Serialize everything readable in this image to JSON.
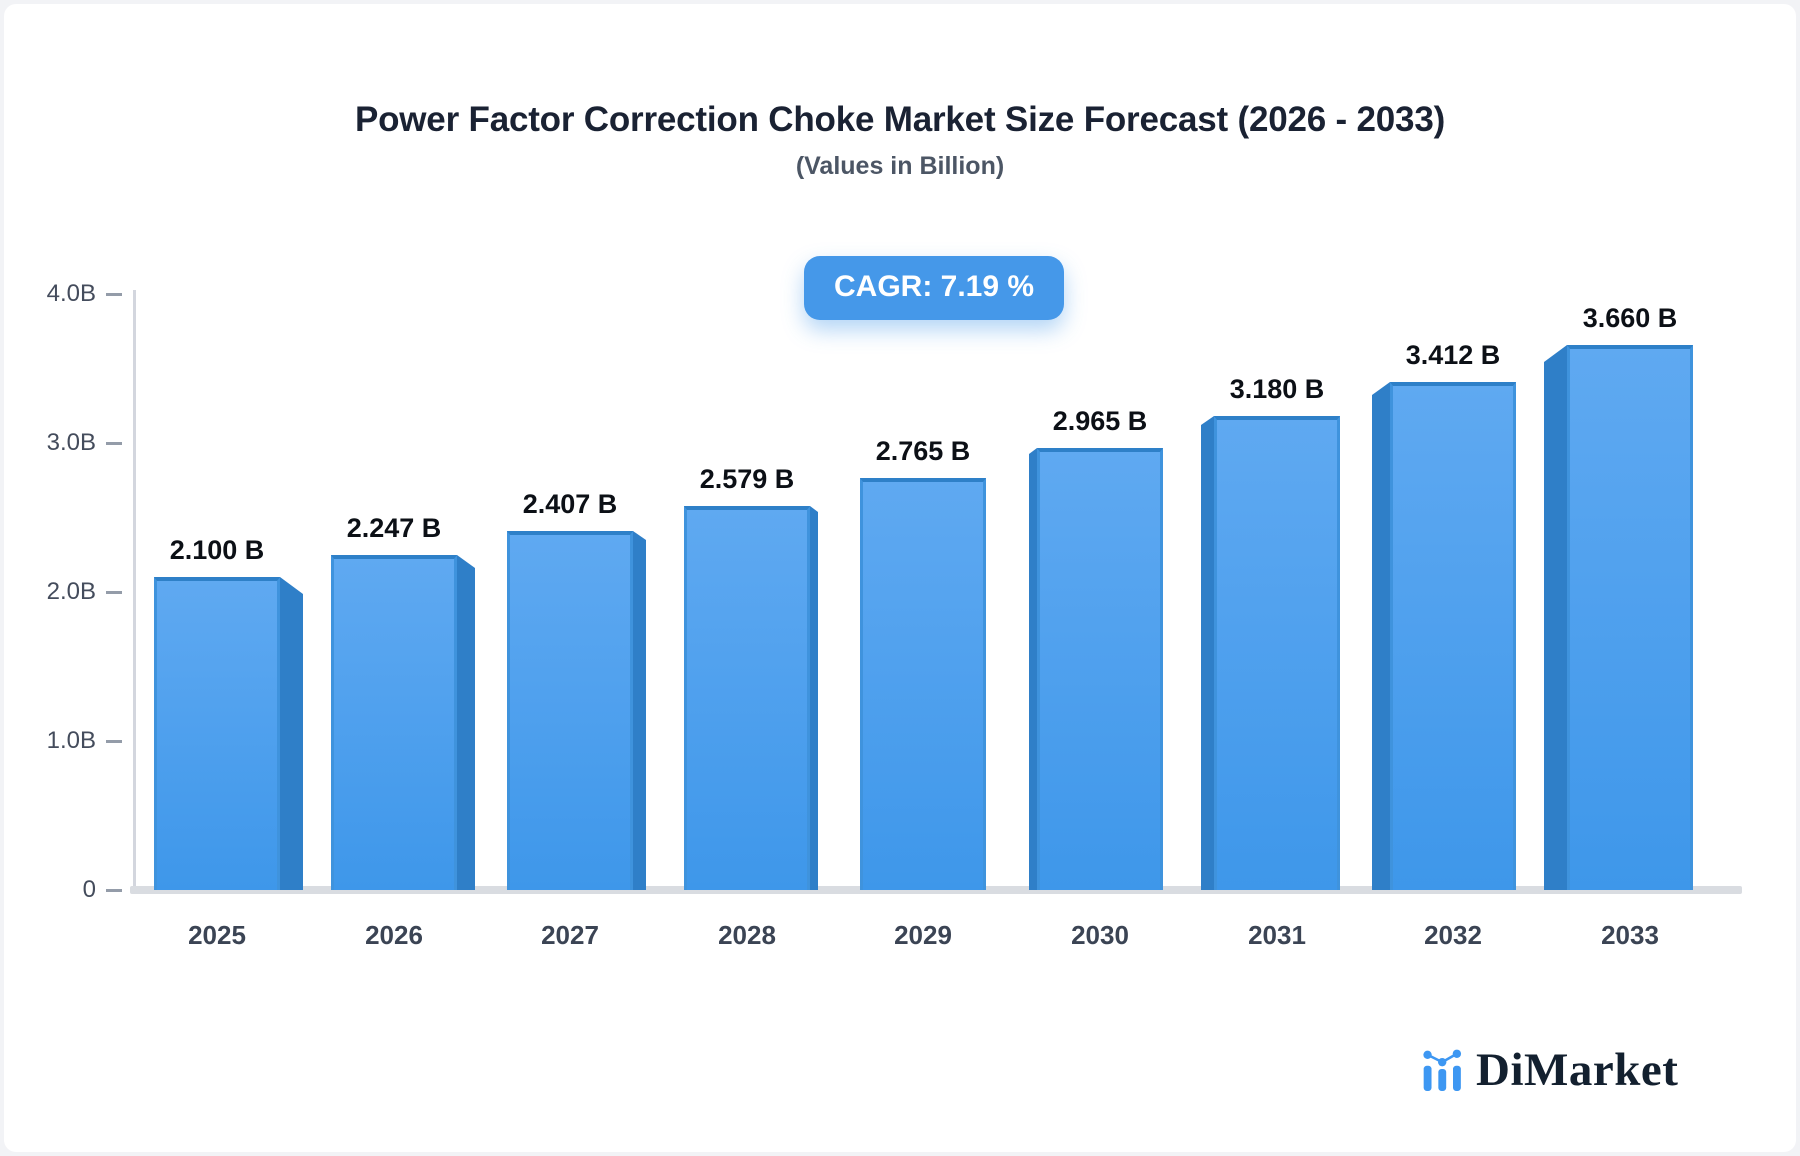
{
  "header": {
    "title": "Power Factor Correction Choke Market Size Forecast (2026 - 2033)",
    "subtitle": "(Values in Billion)"
  },
  "badge": {
    "label": "CAGR: 7.19 %"
  },
  "footer": {
    "brand": "DiMarket"
  },
  "colors": {
    "bar_face_top": "#5fa9f1",
    "bar_face_bottom": "#3e97ea",
    "bar_side": "#2f7fc8",
    "bar_top_edge": "#2e80c8",
    "bar_edge": "#3f93dd",
    "badge_bg": "#4598e9",
    "axis_line": "#d3d6de",
    "tick_dash": "#949ca9",
    "title_text": "#1a2233",
    "subtitle_text": "#4c5665",
    "value_label_text": "#0c1016",
    "year_label_text": "#3b4454",
    "brand_text": "#13202f",
    "logo_blue": "#3d97f2"
  },
  "chart_data": {
    "type": "bar",
    "title": "Power Factor Correction Choke Market Size Forecast (2026 - 2033)",
    "subtitle": "(Values in Billion)",
    "cagr_label": "CAGR: 7.19 %",
    "categories": [
      "2025",
      "2026",
      "2027",
      "2028",
      "2029",
      "2030",
      "2031",
      "2032",
      "2033"
    ],
    "values": [
      2.1,
      2.247,
      2.407,
      2.579,
      2.765,
      2.965,
      3.18,
      3.412,
      3.66
    ],
    "value_labels": [
      "2.100 B",
      "2.247 B",
      "2.407 B",
      "2.579 B",
      "2.765 B",
      "2.965 B",
      "3.180 B",
      "3.412 B",
      "3.660 B"
    ],
    "unit": "Billion",
    "xlabel": "",
    "ylabel": "",
    "ylim": [
      0,
      4.0
    ],
    "yticks": [
      0,
      1.0,
      2.0,
      3.0,
      4.0
    ],
    "ytick_labels": [
      "0",
      "1.0B",
      "2.0B",
      "3.0B",
      "4.0B"
    ],
    "grid": false,
    "legend": false
  }
}
